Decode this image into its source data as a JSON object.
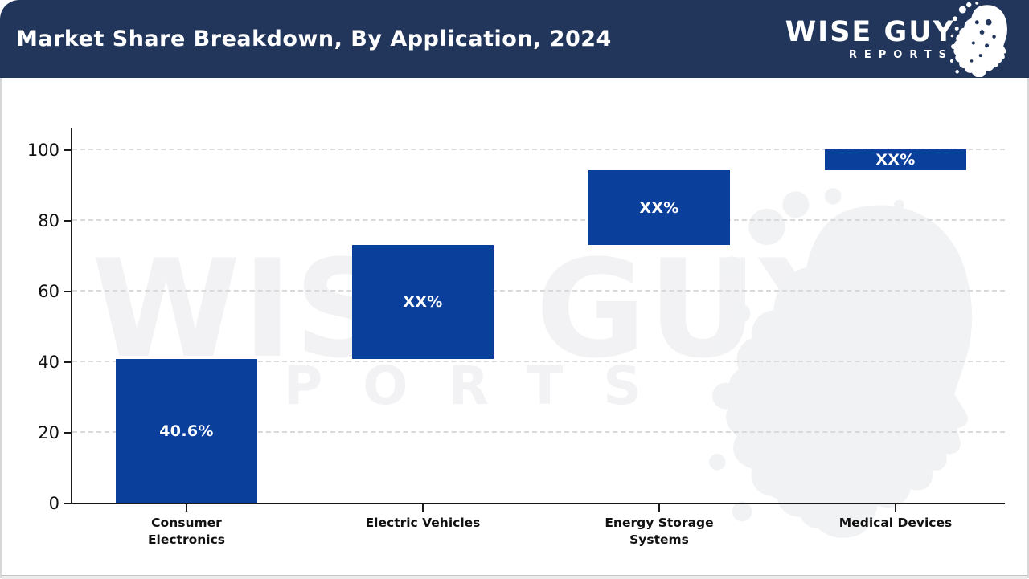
{
  "header": {
    "title": "Market Share Breakdown, By Application, 2024",
    "bg_color": "#22365c",
    "logo": {
      "line1": "WISE GUY",
      "line2": "REPORTS"
    }
  },
  "watermark": {
    "line1": "WISE GUY",
    "line2": "REPORTS"
  },
  "chart_data": {
    "type": "bar",
    "subtype": "waterfall",
    "title": "Market Share Breakdown, By Application, 2024",
    "categories": [
      "Consumer\nElectronics",
      "Electric Vehicles",
      "Energy Storage\nSystems",
      "Medical Devices"
    ],
    "series": [
      {
        "name": "Market Share",
        "segments": [
          {
            "start": 0,
            "end": 40.6
          },
          {
            "start": 40.6,
            "end": 73
          },
          {
            "start": 73,
            "end": 94
          },
          {
            "start": 94,
            "end": 100
          }
        ]
      }
    ],
    "bar_labels": [
      "40.6%",
      "XX%",
      "XX%",
      "XX%"
    ],
    "yticks": [
      0,
      20,
      40,
      60,
      80,
      100
    ],
    "ylim": [
      0,
      105
    ],
    "grid": "horizontal-dashed",
    "legend": "none",
    "xlabel": "",
    "ylabel": "",
    "bar_color": "#0a3f9b",
    "label_color": "#ffffff",
    "grid_color": "#d9d9d9",
    "axis_color": "#1a1a1a"
  }
}
